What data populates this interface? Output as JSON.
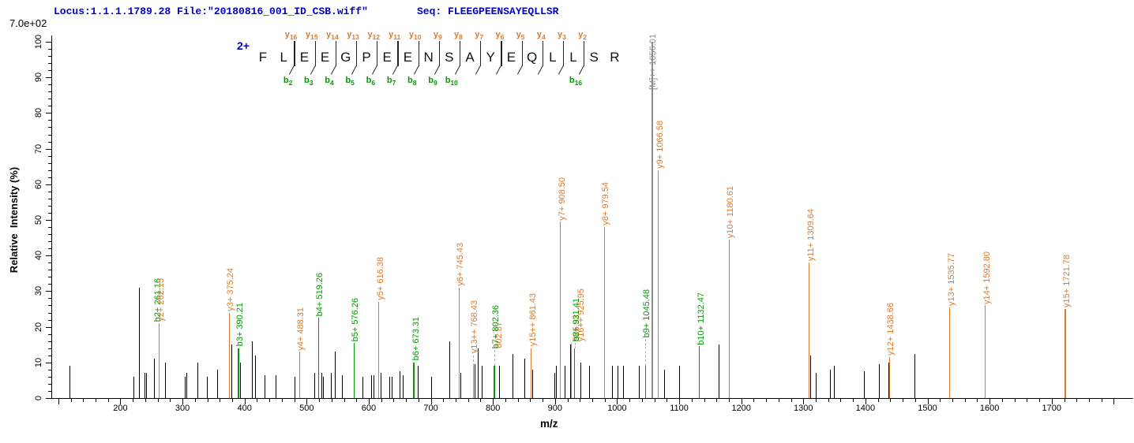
{
  "header": {
    "locus_file": "Locus:1.1.1.1789.28 File:\"20180816_001_ID_CSB.wiff\"",
    "seq_label": "Seq: FLEEGPEENSAYEQLLSR",
    "intensity_scale": "7.0e+02"
  },
  "colors": {
    "y": "#DE7A2E",
    "b": "#089608",
    "M": "#8C8C8C",
    "peak": "#000000",
    "header_blue": "#0000CC",
    "leader": "#ADADAD",
    "axis": "#000000"
  },
  "sequence": {
    "charge_label": "2+",
    "precursor_label": "[M]++ 1056.01",
    "residues": [
      "F",
      "L",
      "E",
      "E",
      "G",
      "P",
      "E",
      "E",
      "N",
      "S",
      "A",
      "Y",
      "E",
      "Q",
      "L",
      "L",
      "S",
      "R"
    ],
    "cuts": [
      {
        "gap": 1,
        "y": "y16",
        "b": "b2"
      },
      {
        "gap": 2,
        "y": "y15",
        "b": "b3"
      },
      {
        "gap": 3,
        "y": "y14",
        "b": "b4"
      },
      {
        "gap": 4,
        "y": "y13",
        "b": "b5"
      },
      {
        "gap": 5,
        "y": "y12",
        "b": "b6"
      },
      {
        "gap": 6,
        "y": "y11",
        "b": "b7"
      },
      {
        "gap": 7,
        "y": "y10",
        "b": "b8"
      },
      {
        "gap": 8,
        "y": "y9",
        "b": "b9"
      },
      {
        "gap": 9,
        "y": "y8",
        "b": "b10"
      },
      {
        "gap": 10,
        "y": "y7",
        "b": ""
      },
      {
        "gap": 11,
        "y": "y6",
        "b": ""
      },
      {
        "gap": 12,
        "y": "y5",
        "b": ""
      },
      {
        "gap": 13,
        "y": "y4",
        "b": ""
      },
      {
        "gap": 14,
        "y": "y3",
        "b": ""
      },
      {
        "gap": 15,
        "y": "y2",
        "b": "b16"
      }
    ]
  },
  "chart_data": {
    "type": "bar",
    "subtype": "ms2-fragment-spectrum",
    "title": "",
    "xlabel": "m/z",
    "ylabel": "Relative  Intensity (%)",
    "xlim": [
      90,
      1830
    ],
    "ylim": [
      0,
      100
    ],
    "xticks": [
      200,
      300,
      400,
      500,
      600,
      700,
      800,
      900,
      1000,
      1100,
      1200,
      1300,
      1400,
      1500,
      1600,
      1700
    ],
    "x_minor_step": 20,
    "yticks": [
      0,
      10,
      20,
      30,
      40,
      50,
      60,
      70,
      80,
      90,
      100
    ],
    "y_minor_step": 2,
    "grid": false,
    "legend": false,
    "annotated_peaks": [
      {
        "ion": "b2/y2",
        "mz": 262.15,
        "intensity": 21,
        "line_color": "y",
        "labels": [
          {
            "text": "b2+ 261.16",
            "color": "b",
            "dx": -3
          },
          {
            "text": "y2+ 262.15",
            "color": "y",
            "dx": 1
          }
        ]
      },
      {
        "ion": "y3",
        "mz": 375.24,
        "intensity": 24,
        "line_color": "y",
        "labels": [
          {
            "text": "y3+ 375.24",
            "color": "y"
          }
        ]
      },
      {
        "ion": "b3",
        "mz": 390.21,
        "intensity": 14,
        "line_color": "b",
        "labels": [
          {
            "text": "b3+ 390.21",
            "color": "b"
          }
        ]
      },
      {
        "ion": "y4",
        "mz": 488.31,
        "intensity": 13,
        "line_color": "y",
        "labels": [
          {
            "text": "y4+ 488.31",
            "color": "y"
          }
        ]
      },
      {
        "ion": "b4",
        "mz": 519.26,
        "intensity": 22.5,
        "line_color": "b",
        "labels": [
          {
            "text": "b4+ 519.26",
            "color": "b"
          }
        ]
      },
      {
        "ion": "b5",
        "mz": 576.26,
        "intensity": 15.5,
        "line_color": "b",
        "labels": [
          {
            "text": "b5+ 576.26",
            "color": "b"
          }
        ]
      },
      {
        "ion": "y5",
        "mz": 616.38,
        "intensity": 27,
        "line_color": "y",
        "labels": [
          {
            "text": "y5+ 616.38",
            "color": "y"
          }
        ]
      },
      {
        "ion": "b6-companion",
        "mz": 671.5,
        "intensity": 10,
        "line_color": "b",
        "labels": []
      },
      {
        "ion": "b6",
        "mz": 673.31,
        "intensity": 10,
        "line_color": "b",
        "labels": [
          {
            "text": "b6+ 673.31",
            "color": "b"
          }
        ]
      },
      {
        "ion": "y6",
        "mz": 745.43,
        "intensity": 31,
        "line_color": "y",
        "labels": [
          {
            "text": "y6+ 745.43",
            "color": "y"
          }
        ]
      },
      {
        "ion": "y13++",
        "mz": 768.43,
        "intensity": 9,
        "label_h": 12,
        "leader": true,
        "line_color": "y",
        "labels": [
          {
            "text": "y13++ 768.43",
            "color": "y"
          }
        ]
      },
      {
        "ion": "b7",
        "mz": 802.36,
        "intensity": 9,
        "label_h": 13.5,
        "leader": true,
        "line_color": "b",
        "labels": [
          {
            "text": "802.87",
            "color": "y",
            "dx": 4
          },
          {
            "text": "b7+ 802.36",
            "color": "b"
          }
        ]
      },
      {
        "ion": "y15++",
        "mz": 861.43,
        "intensity": 14,
        "line_color": "y",
        "labels": [
          {
            "text": "y15++ 861.43",
            "color": "y"
          }
        ]
      },
      {
        "ion": "y7",
        "mz": 908.5,
        "intensity": 49.5,
        "line_color": "y",
        "labels": [
          {
            "text": "y7+ 908.50",
            "color": "y"
          }
        ]
      },
      {
        "ion": "y16++",
        "mz": 925.95,
        "intensity": 15,
        "label_h": 15.5,
        "line_color": "y",
        "labels": [
          {
            "text": "925.92",
            "color": "y",
            "dx": 5
          },
          {
            "text": "y16++ 925.95",
            "color": "y",
            "dx": 11
          }
        ]
      },
      {
        "ion": "b8",
        "mz": 931.41,
        "intensity": 14,
        "label_h": 15.5,
        "line_color": "b",
        "labels": [
          {
            "text": "b8+ 931.41",
            "color": "b"
          }
        ]
      },
      {
        "ion": "y8",
        "mz": 979.54,
        "intensity": 48,
        "line_color": "y",
        "labels": [
          {
            "text": "y8+ 979.54",
            "color": "y"
          }
        ]
      },
      {
        "ion": "b9",
        "mz": 1045.48,
        "intensity": 9,
        "label_h": 16.5,
        "leader": true,
        "line_color": "b",
        "labels": [
          {
            "text": "b9+ 1045.48",
            "color": "b"
          }
        ]
      },
      {
        "ion": "[M]++",
        "mz": 1056.01,
        "intensity": 100,
        "label_h": 86,
        "line_color": "M",
        "labels": [
          {
            "text": "[M]++ 1056.01",
            "color": "M"
          }
        ]
      },
      {
        "ion": "y9",
        "mz": 1066.58,
        "intensity": 64,
        "line_color": "y",
        "labels": [
          {
            "text": "y9+ 1066.58",
            "color": "y"
          }
        ]
      },
      {
        "ion": "b10",
        "mz": 1132.47,
        "intensity": 14.5,
        "line_color": "b",
        "labels": [
          {
            "text": "b10+ 1132.47",
            "color": "b"
          }
        ]
      },
      {
        "ion": "y10",
        "mz": 1180.61,
        "intensity": 44.5,
        "line_color": "y",
        "labels": [
          {
            "text": "y10+ 1180.61",
            "color": "y"
          }
        ]
      },
      {
        "ion": "y11",
        "mz": 1309.64,
        "intensity": 38,
        "line_color": "y",
        "labels": [
          {
            "text": "y11+ 1309.64",
            "color": "y"
          }
        ]
      },
      {
        "ion": "y12",
        "mz": 1438.66,
        "intensity": 11.5,
        "line_color": "y",
        "labels": [
          {
            "text": "y12+ 1438.66",
            "color": "y"
          }
        ]
      },
      {
        "ion": "y13",
        "mz": 1535.77,
        "intensity": 25.5,
        "line_color": "y",
        "labels": [
          {
            "text": "y13+ 1535.77",
            "color": "y"
          }
        ]
      },
      {
        "ion": "y14",
        "mz": 1592.8,
        "intensity": 26,
        "line_color": "y",
        "labels": [
          {
            "text": "y14+ 1592.80",
            "color": "y"
          }
        ]
      },
      {
        "ion": "y15",
        "mz": 1721.78,
        "intensity": 25,
        "line_color": "y",
        "labels": [
          {
            "text": "y15+ 1721.78",
            "color": "y"
          }
        ]
      }
    ],
    "unlabeled_peaks": [
      [
        118,
        9
      ],
      [
        222,
        6
      ],
      [
        231,
        31
      ],
      [
        239,
        7
      ],
      [
        242,
        7
      ],
      [
        255,
        11
      ],
      [
        273,
        10
      ],
      [
        304,
        6
      ],
      [
        307,
        7
      ],
      [
        325,
        10
      ],
      [
        340,
        6
      ],
      [
        356,
        8
      ],
      [
        379,
        15
      ],
      [
        393,
        10
      ],
      [
        412,
        16
      ],
      [
        418,
        12
      ],
      [
        433,
        6.5
      ],
      [
        451,
        6.5
      ],
      [
        481,
        6
      ],
      [
        513,
        7
      ],
      [
        524,
        7
      ],
      [
        527,
        6
      ],
      [
        539,
        7
      ],
      [
        546,
        13
      ],
      [
        557,
        6.5
      ],
      [
        590,
        6
      ],
      [
        604,
        6.5
      ],
      [
        608,
        6.5
      ],
      [
        620,
        7
      ],
      [
        634,
        6
      ],
      [
        638,
        6
      ],
      [
        650,
        7.5
      ],
      [
        656,
        6.5
      ],
      [
        679,
        9
      ],
      [
        701,
        6
      ],
      [
        730,
        16
      ],
      [
        748,
        7
      ],
      [
        771,
        9.5
      ],
      [
        776,
        14
      ],
      [
        783,
        9
      ],
      [
        811,
        9
      ],
      [
        832,
        12.5
      ],
      [
        851,
        11
      ],
      [
        864,
        8
      ],
      [
        899,
        7
      ],
      [
        902,
        9
      ],
      [
        916,
        9
      ],
      [
        924.8,
        15
      ],
      [
        941,
        10
      ],
      [
        956,
        9
      ],
      [
        992,
        9
      ],
      [
        1001,
        9
      ],
      [
        1010,
        9
      ],
      [
        1036,
        9
      ],
      [
        1076,
        8
      ],
      [
        1100,
        9
      ],
      [
        1164,
        15
      ],
      [
        1312,
        12
      ],
      [
        1321,
        7
      ],
      [
        1344,
        8
      ],
      [
        1350,
        9
      ],
      [
        1398,
        7.5
      ],
      [
        1422,
        9.5
      ],
      [
        1437,
        10
      ],
      [
        1479,
        12.5
      ]
    ]
  }
}
